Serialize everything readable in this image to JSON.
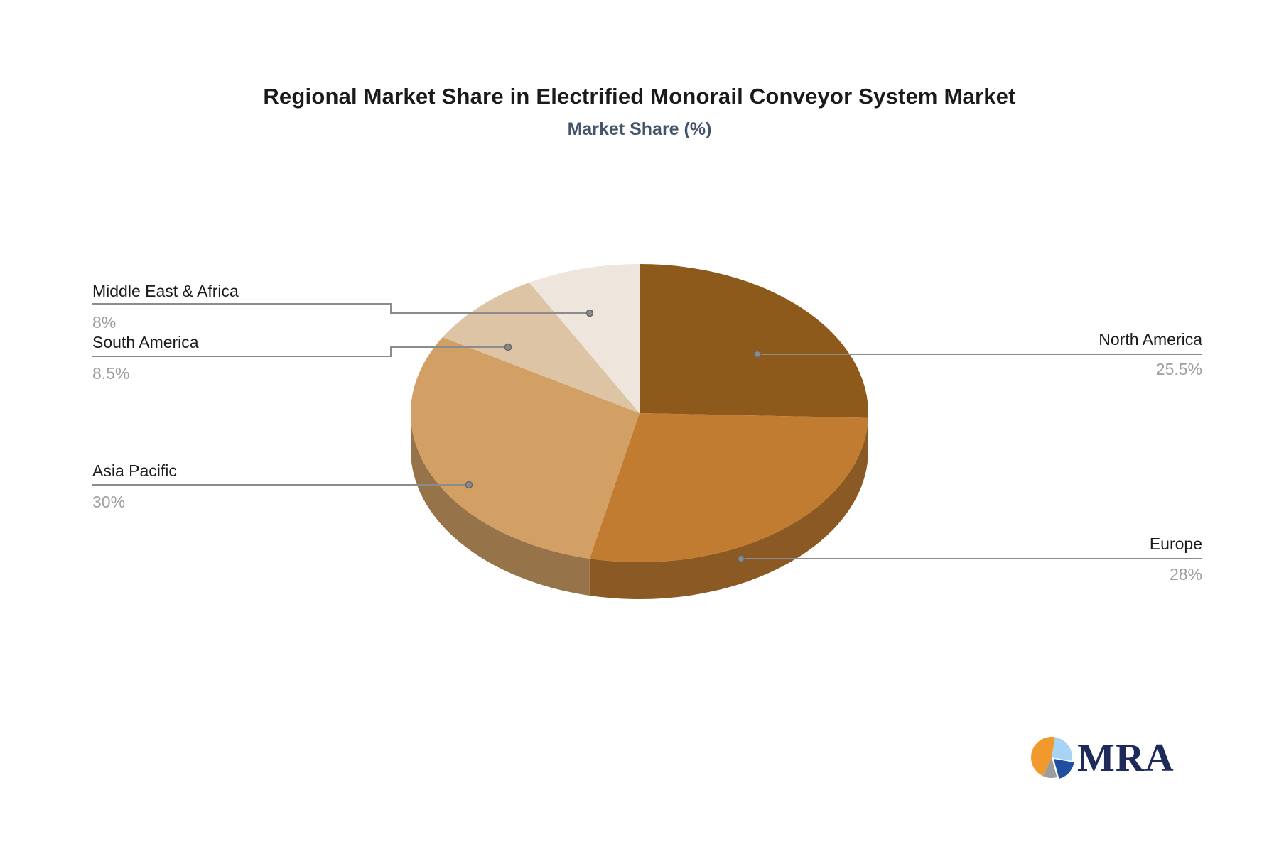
{
  "chart_data": {
    "type": "pie",
    "style": "3d",
    "title": "Regional Market Share in Electrified Monorail Conveyor System Market",
    "subtitle": "Market Share (%)",
    "start_angle_deg": 0,
    "direction": "clockwise",
    "legend": "none",
    "slices": [
      {
        "label": "North America",
        "value": 25.5,
        "display_value": "25.5%",
        "color": "#8D5A1B"
      },
      {
        "label": "Europe",
        "value": 28,
        "display_value": "28%",
        "color": "#C17C31"
      },
      {
        "label": "Asia Pacific",
        "value": 30,
        "display_value": "30%",
        "color": "#D2A065"
      },
      {
        "label": "South America",
        "value": 8.5,
        "display_value": "8.5%",
        "color": "#DDC4A5"
      },
      {
        "label": "Middle East & Africa",
        "value": 8,
        "display_value": "8%",
        "color": "#EEE5DC"
      }
    ],
    "label_text_color": "#1b1b1b",
    "value_text_color": "#9e9e9e",
    "leader_line_color": "#8C8C8C"
  },
  "logo": {
    "text": "MRA",
    "text_color": "#1E2A5A",
    "pie_colors": {
      "orange": "#F2992E",
      "light_blue": "#A9D3F5",
      "dark_blue": "#1F4FA0",
      "gray": "#9C9C9C"
    }
  }
}
